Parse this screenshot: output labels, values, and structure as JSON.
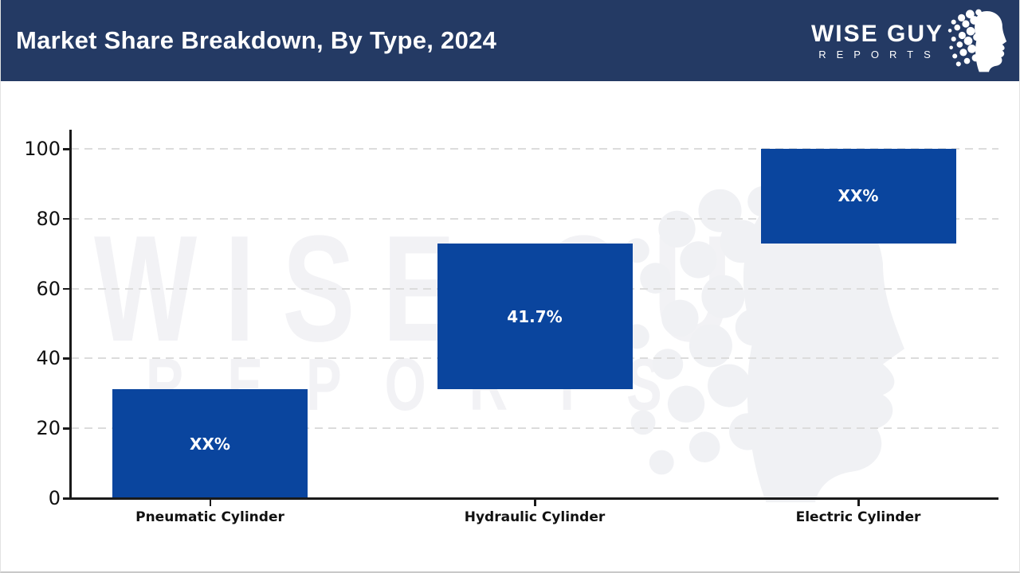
{
  "header": {
    "title": "Market Share Breakdown, By Type, 2024",
    "bg_color": "#243a64",
    "text_color": "#ffffff",
    "logo": {
      "wordmark": "WISE GUY",
      "subtitle": "REPORTS"
    }
  },
  "watermark": {
    "line1": "WISE GUY",
    "line2": "REPORTS"
  },
  "chart_data": {
    "type": "bar",
    "subtype": "floating-waterfall",
    "title": "Market Share Breakdown, By Type, 2024",
    "categories": [
      "Pneumatic Cylinder",
      "Hydraulic Cylinder",
      "Electric Cylinder"
    ],
    "segments": [
      {
        "category": "Pneumatic Cylinder",
        "start": 0,
        "end": 31.2,
        "size_pct": 31.2,
        "label": "XX%"
      },
      {
        "category": "Hydraulic Cylinder",
        "start": 31.2,
        "end": 72.9,
        "size_pct": 41.7,
        "label": "41.7%"
      },
      {
        "category": "Electric Cylinder",
        "start": 72.9,
        "end": 100,
        "size_pct": 27.1,
        "label": "XX%"
      }
    ],
    "yticks": [
      0,
      20,
      40,
      60,
      80,
      100
    ],
    "ylim": [
      0,
      100
    ],
    "xlabel": "",
    "ylabel": "",
    "grid": "horizontal-dashed",
    "legend": "none",
    "bar_color": "#0a459e",
    "bar_label_color": "#ffffff",
    "axis_color": "#1a1a1a",
    "grid_color": "#dcdcdc",
    "tick_label_color": "#111111"
  },
  "footer": {
    "border_color": "#c9c9c9"
  }
}
